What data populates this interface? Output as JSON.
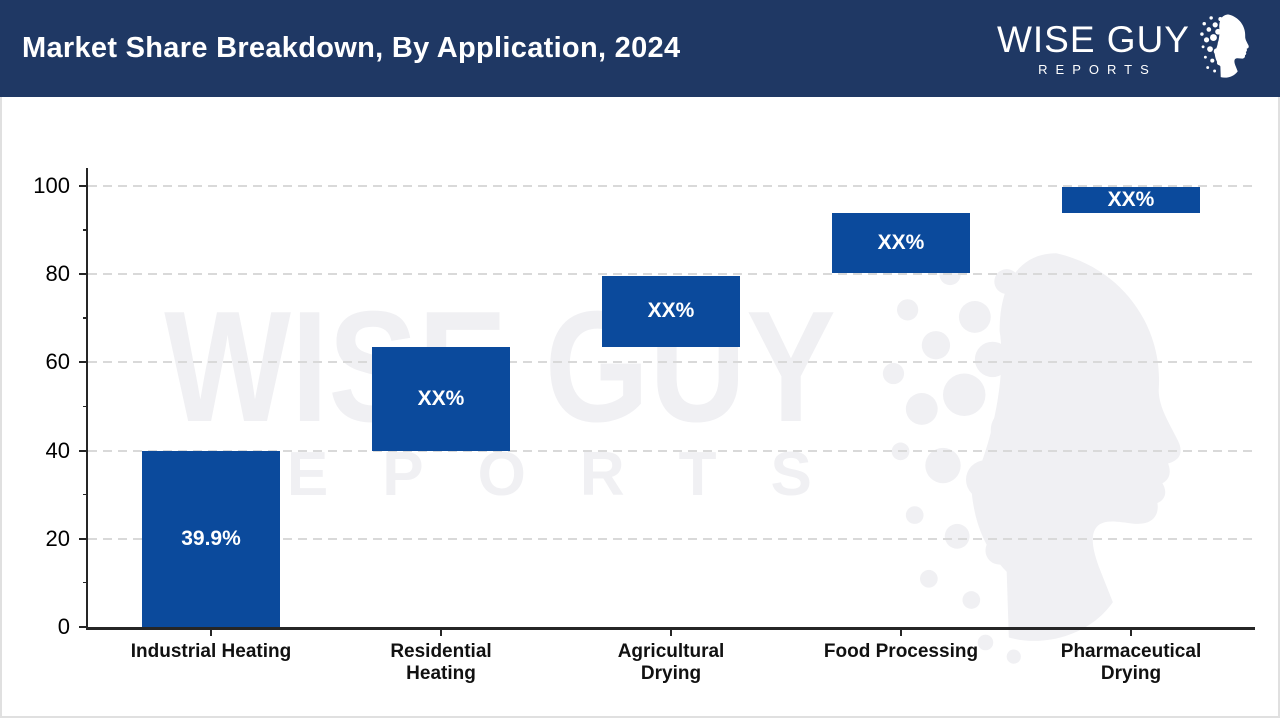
{
  "header": {
    "title": "Market Share Breakdown, By Application, 2024",
    "logo": {
      "line1": "WISE GUY",
      "line2": "REPORTS"
    }
  },
  "watermark": {
    "line1": "WISE GUY",
    "line2": "REPORTS"
  },
  "colors": {
    "header_bg": "#1f3864",
    "bar": "#0b4a9c",
    "gridline": "#d9d9d9",
    "axis": "#262626",
    "bar_label": "#ffffff",
    "watermark": "#f0f0f3"
  },
  "chart_data": {
    "type": "bar",
    "subtype": "floating-waterfall",
    "title": "Market Share Breakdown, By Application, 2024",
    "categories": [
      "Industrial Heating",
      "Residential\nHeating",
      "Agricultural\nDrying",
      "Food Processing",
      "Pharmaceutical\nDrying"
    ],
    "segments": [
      {
        "category": "Industrial Heating",
        "start": 0,
        "end": 39.9,
        "label": "39.9%"
      },
      {
        "category": "Residential Heating",
        "start": 40.0,
        "end": 63.5,
        "label": "XX%"
      },
      {
        "category": "Agricultural Drying",
        "start": 63.6,
        "end": 79.6,
        "label": "XX%"
      },
      {
        "category": "Food Processing",
        "start": 80.2,
        "end": 93.8,
        "label": "XX%"
      },
      {
        "category": "Pharmaceutical Drying",
        "start": 93.8,
        "end": 99.7,
        "label": "XX%"
      }
    ],
    "ylim": [
      0,
      100
    ],
    "yticks": [
      0,
      20,
      40,
      60,
      80,
      100
    ],
    "minor_yticks": [
      10,
      30,
      50,
      70,
      90
    ],
    "grid": {
      "horizontal": true,
      "style": "dashed"
    },
    "xlabel": "",
    "ylabel": "",
    "legend": null
  }
}
